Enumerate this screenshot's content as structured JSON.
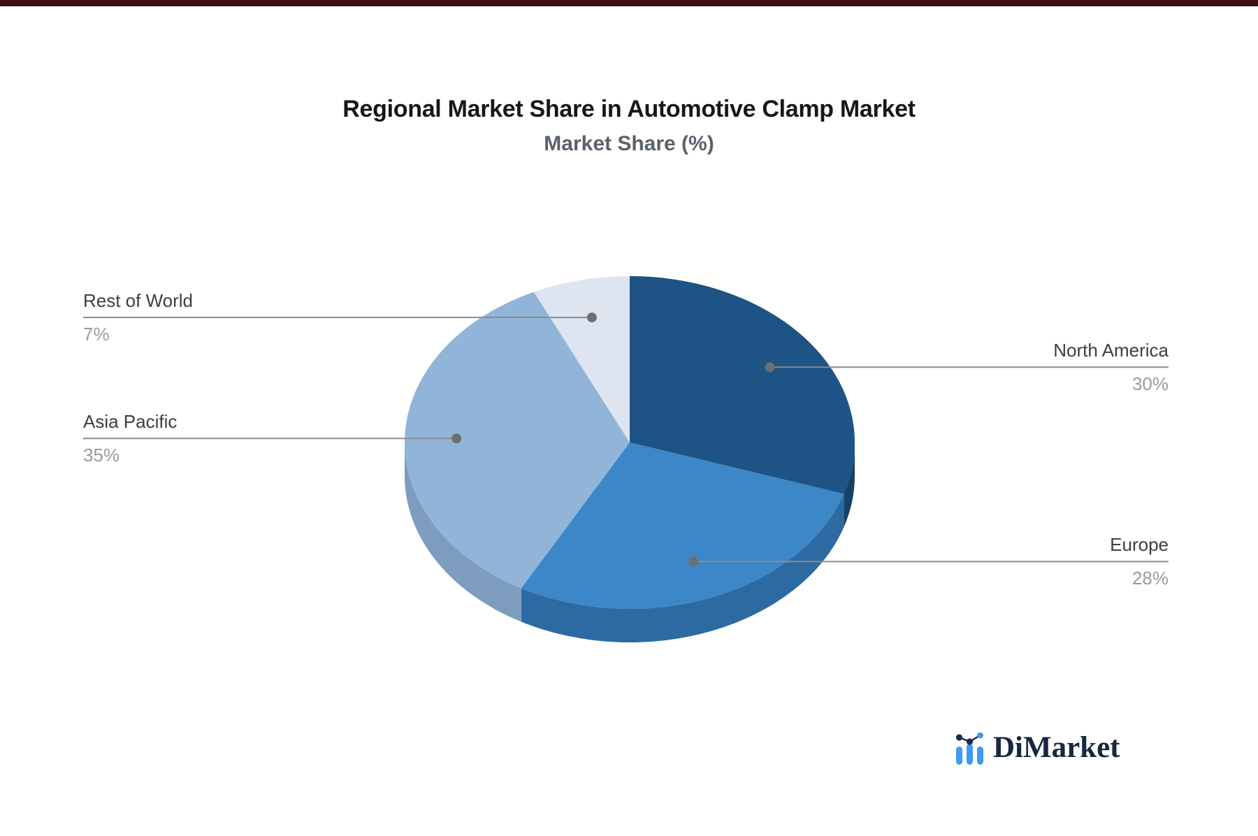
{
  "page": {
    "title": "Regional Market Share in Automotive Clamp Market",
    "subtitle": "Market Share (%)"
  },
  "logo": {
    "text": "DiMarket",
    "icon": "bar-line-chart-icon"
  },
  "chart_data": {
    "type": "pie",
    "title": "Regional Market Share in Automotive Clamp Market",
    "subtitle": "Market Share (%)",
    "labels": [
      "North America",
      "Europe",
      "Asia Pacific",
      "Rest of World"
    ],
    "values": [
      30,
      28,
      35,
      7
    ],
    "display_pcts": [
      "30%",
      "28%",
      "35%",
      "7%"
    ],
    "colors_top": [
      "#1d5385",
      "#3b87c8",
      "#91b5d8",
      "#dee5f0"
    ],
    "colors_side": [
      "#164269",
      "#2d6aa2",
      "#7e9dbe",
      "#c3cfdf"
    ],
    "start_angle_deg": 0,
    "direction": "clockwise",
    "style": "3d",
    "legend": "none",
    "leader_line_color": "#8c8c8c",
    "leader_dot_color": "#6f6f6f"
  }
}
